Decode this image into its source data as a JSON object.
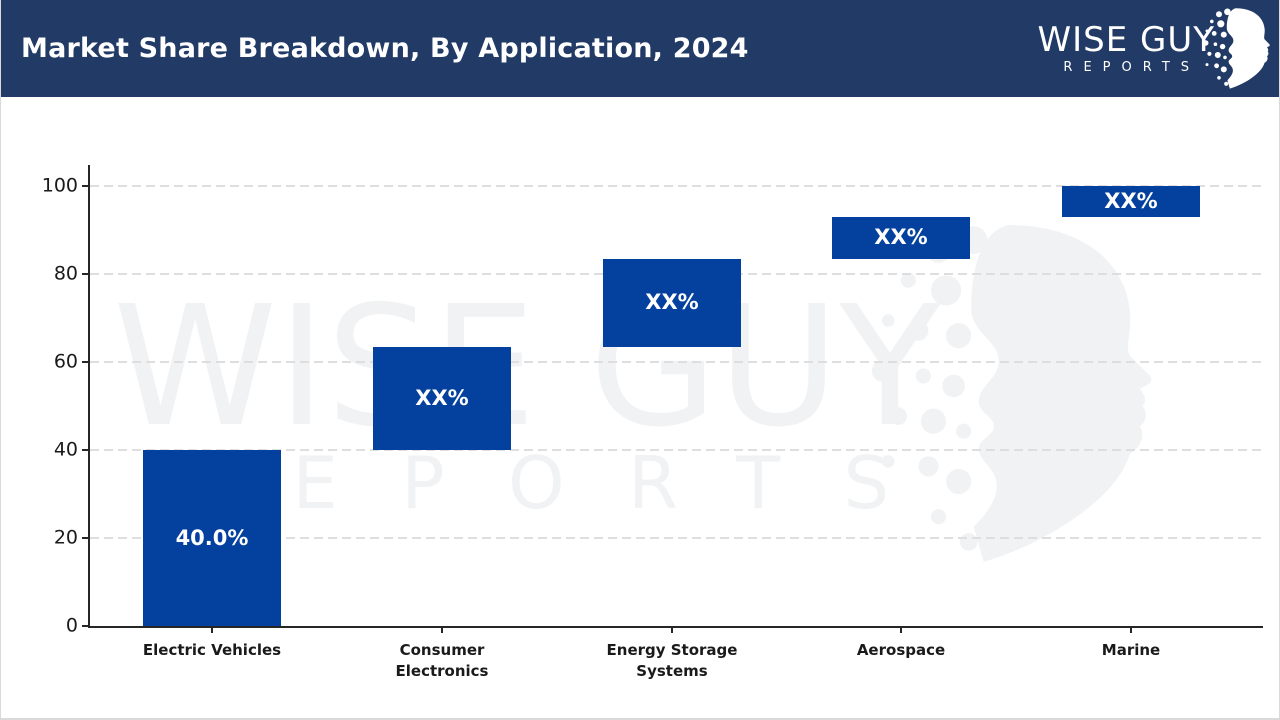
{
  "header": {
    "title": "Market Share Breakdown, By Application, 2024",
    "logo": {
      "line1": "WISE GUY",
      "line2": "REPORTS"
    }
  },
  "watermark": {
    "line1": "WISE GUY",
    "line2": "REPORTS"
  },
  "chart_data": {
    "type": "bar",
    "subtype": "waterfall",
    "title": "Market Share Breakdown, By Application, 2024",
    "categories": [
      "Electric Vehicles",
      "Consumer Electronics",
      "Energy Storage Systems",
      "Aerospace",
      "Marine"
    ],
    "segments": [
      {
        "category": "Electric Vehicles",
        "start": 0,
        "end": 40,
        "label": "40.0%"
      },
      {
        "category": "Consumer Electronics",
        "start": 40,
        "end": 63.5,
        "label": "XX%"
      },
      {
        "category": "Energy Storage Systems",
        "start": 63.5,
        "end": 83.5,
        "label": "XX%"
      },
      {
        "category": "Aerospace",
        "start": 83.5,
        "end": 93,
        "label": "XX%"
      },
      {
        "category": "Marine",
        "start": 93,
        "end": 100,
        "label": "XX%"
      }
    ],
    "xlabel": "",
    "ylabel": "",
    "ylim": [
      0,
      100
    ],
    "yticks": [
      0,
      20,
      40,
      60,
      80,
      100
    ],
    "grid": "horizontal-dashed",
    "legend": "none"
  },
  "colors": {
    "header_bg": "#213a66",
    "bar": "#04419e",
    "grid": "#dedede",
    "axis": "#262626",
    "text": "#1a1a1a",
    "watermark": "#f1f2f4",
    "page_border": "#d9d9d9"
  }
}
